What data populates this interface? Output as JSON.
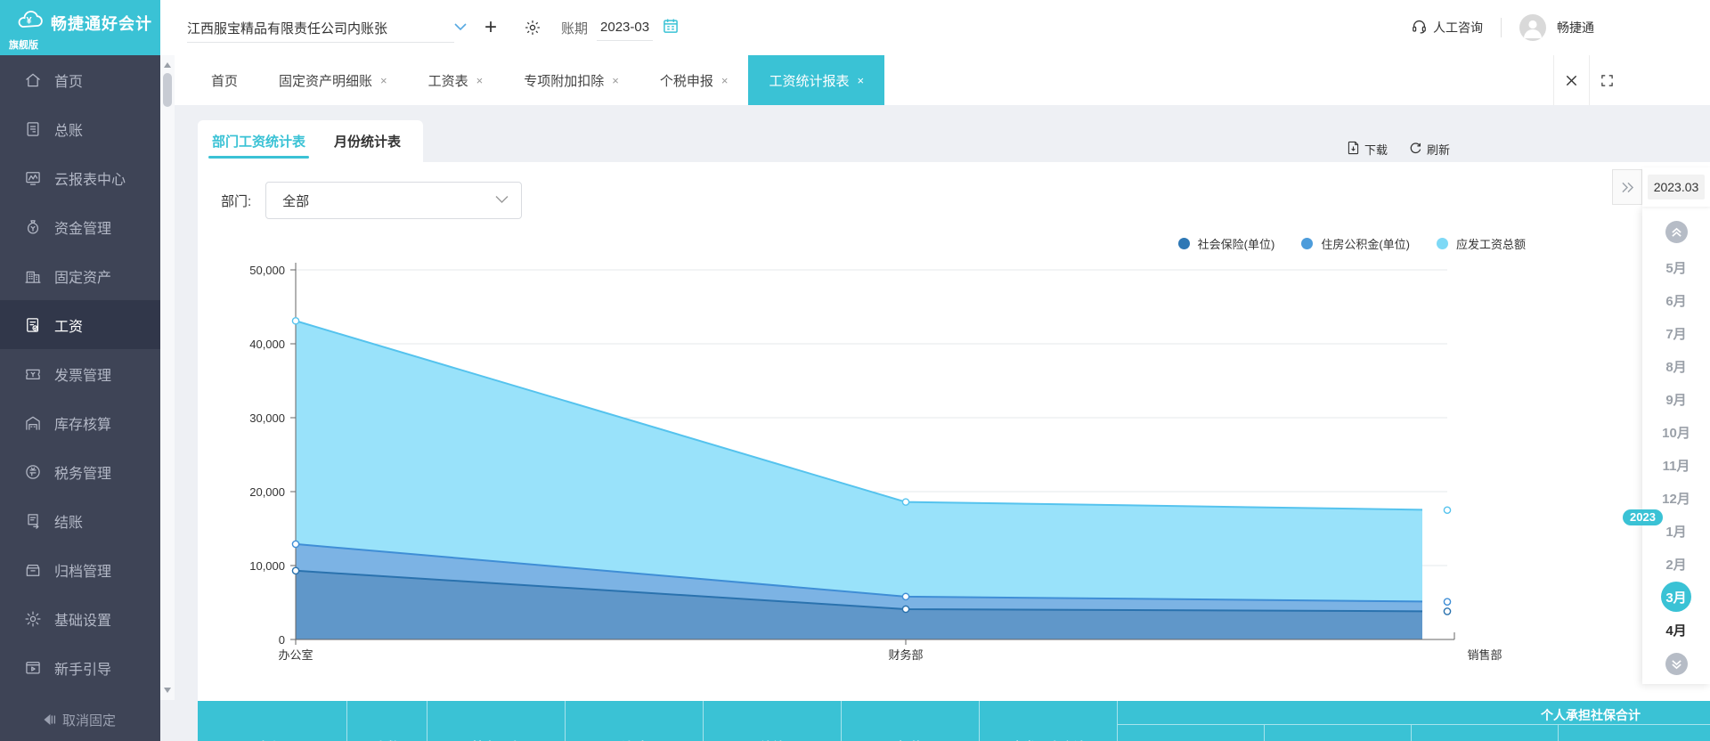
{
  "topbar": {
    "logo_title": "畅捷通好会计",
    "logo_subtitle": "旗舰版",
    "company": "江西服宝精品有限责任公司内账张",
    "period_label": "账期",
    "period_value": "2023-03",
    "support_label": "人工咨询",
    "user_name": "畅捷通",
    "icons": [
      "cloud-logo-icon",
      "chevron-down-icon",
      "plus-icon",
      "gear-icon",
      "calendar-icon",
      "headset-icon",
      "avatar"
    ]
  },
  "tabs": [
    {
      "label": "首页",
      "closable": false,
      "active": false
    },
    {
      "label": "固定资产明细账",
      "closable": true,
      "active": false
    },
    {
      "label": "工资表",
      "closable": true,
      "active": false
    },
    {
      "label": "专项附加扣除",
      "closable": true,
      "active": false
    },
    {
      "label": "个税申报",
      "closable": true,
      "active": false
    },
    {
      "label": "工资统计报表",
      "closable": true,
      "active": true
    }
  ],
  "window_buttons": [
    "close-icon",
    "fullscreen-icon"
  ],
  "sidebar": {
    "items": [
      {
        "label": "首页",
        "icon": "home-icon",
        "active": false
      },
      {
        "label": "总账",
        "icon": "ledger-icon",
        "active": false
      },
      {
        "label": "云报表中心",
        "icon": "cloud-report-icon",
        "active": false
      },
      {
        "label": "资金管理",
        "icon": "money-bag-icon",
        "active": false
      },
      {
        "label": "固定资产",
        "icon": "building-icon",
        "active": false
      },
      {
        "label": "工资",
        "icon": "salary-icon",
        "active": true
      },
      {
        "label": "发票管理",
        "icon": "invoice-icon",
        "active": false
      },
      {
        "label": "库存核算",
        "icon": "warehouse-icon",
        "active": false
      },
      {
        "label": "税务管理",
        "icon": "tax-icon",
        "active": false
      },
      {
        "label": "结账",
        "icon": "settle-icon",
        "active": false
      },
      {
        "label": "归档管理",
        "icon": "archive-icon",
        "active": false
      },
      {
        "label": "基础设置",
        "icon": "settings-icon",
        "active": false
      },
      {
        "label": "新手引导",
        "icon": "guide-icon",
        "active": false
      }
    ],
    "unpin_label": "取消固定"
  },
  "subtabs": [
    {
      "label": "部门工资统计表",
      "active": true
    },
    {
      "label": "月份统计表",
      "active": false
    }
  ],
  "toolbar": {
    "download_label": "下载",
    "refresh_label": "刷新"
  },
  "filter": {
    "label": "部门:",
    "value": "全部"
  },
  "chart_data": {
    "type": "area",
    "categories": [
      "办公室",
      "财务部",
      "销售部"
    ],
    "series": [
      {
        "name": "社会保险(单位)",
        "values": [
          9300,
          4100,
          3800
        ],
        "line": "#2a72ae",
        "fill": "#6097c9",
        "dot": "#2e78b5"
      },
      {
        "name": "住房公积金(单位)",
        "values": [
          12900,
          5800,
          5100
        ],
        "line": "#3f8ed6",
        "fill": "#7cb3e4",
        "dot": "#4c9cdb"
      },
      {
        "name": "应发工资总额",
        "values": [
          43100,
          18600,
          17500
        ],
        "line": "#55c3ee",
        "fill": "#99e2fa",
        "dot": "#7ed9f6"
      }
    ],
    "ylim": [
      0,
      50000
    ],
    "ytick_step": 10000,
    "grid": true,
    "legend_position": "top-right"
  },
  "month_panel": {
    "collapse_icon": "double-chevron-right-icon",
    "period_value": "2023.03",
    "year_badge": "2023",
    "months": [
      "5月",
      "6月",
      "7月",
      "8月",
      "9月",
      "10月",
      "11月",
      "12月",
      "1月",
      "2月",
      "3月",
      "4月"
    ],
    "active_month": "3月",
    "emphasized_month": "4月"
  },
  "table": {
    "columns": [
      "部门",
      "人数",
      "基本工资",
      "津贴",
      "绩效",
      "扣款",
      "应发工资合计"
    ],
    "group_header": "个人承担社保合计"
  },
  "colors": {
    "accent": "#3ac2d5",
    "sidebar_bg": "#3e4456",
    "sidebar_active_bg": "#31374a",
    "content_bg": "#eef0f4"
  }
}
